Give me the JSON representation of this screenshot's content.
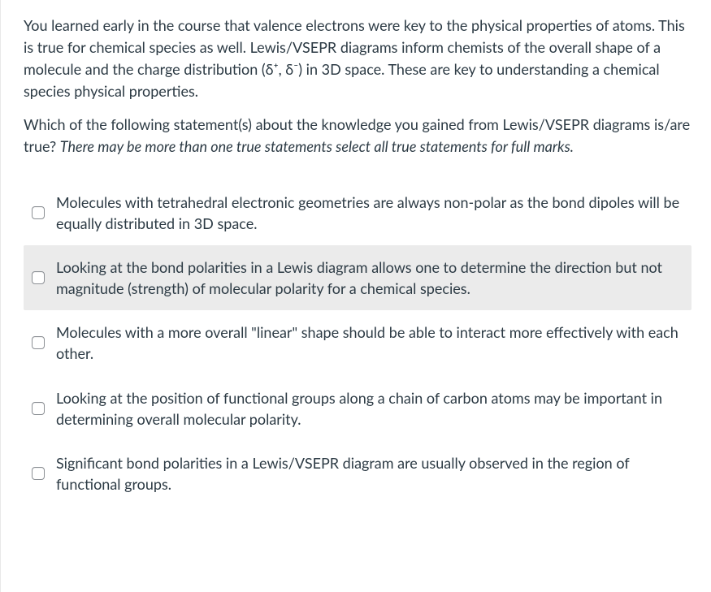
{
  "question": {
    "intro_paragraph": "You learned early in the course that valence electrons were key to the physical properties of atoms. This is true for chemical species as well. Lewis/VSEPR diagrams inform chemists of the overall shape of a molecule and the charge distribution (δ⁺, δ⁻) in 3D space. These are key to understanding a chemical species physical properties.",
    "prompt_lead": "Which of the following statement(s) about the knowledge you gained from Lewis/VSEPR diagrams is/are true? ",
    "prompt_emph": "There may be more than one true statements select all true statements for full marks."
  },
  "options": [
    {
      "label": "Molecules with tetrahedral electronic geometries are always non-polar as the bond dipoles will be equally distributed in 3D space.",
      "checked": false,
      "highlight": false
    },
    {
      "label": "Looking at the bond polarities in a Lewis diagram allows one to determine the direction but not magnitude (strength) of molecular polarity for a chemical species.",
      "checked": false,
      "highlight": true
    },
    {
      "label": "Molecules with a more overall \"linear\" shape should be able to interact more effectively with each other.",
      "checked": false,
      "highlight": false
    },
    {
      "label": "Looking at the position of functional groups along a chain of carbon atoms may be important in determining overall molecular polarity.",
      "checked": false,
      "highlight": false
    },
    {
      "label": "Significant bond polarities in a Lewis/VSEPR diagram are usually observed in the region of functional groups.",
      "checked": false,
      "highlight": false
    }
  ],
  "colors": {
    "text": "#2d3b45",
    "border": "#e8e8e8",
    "highlight_bg": "#ebebeb",
    "checkbox_border": "#8b8f94",
    "background": "#ffffff"
  }
}
